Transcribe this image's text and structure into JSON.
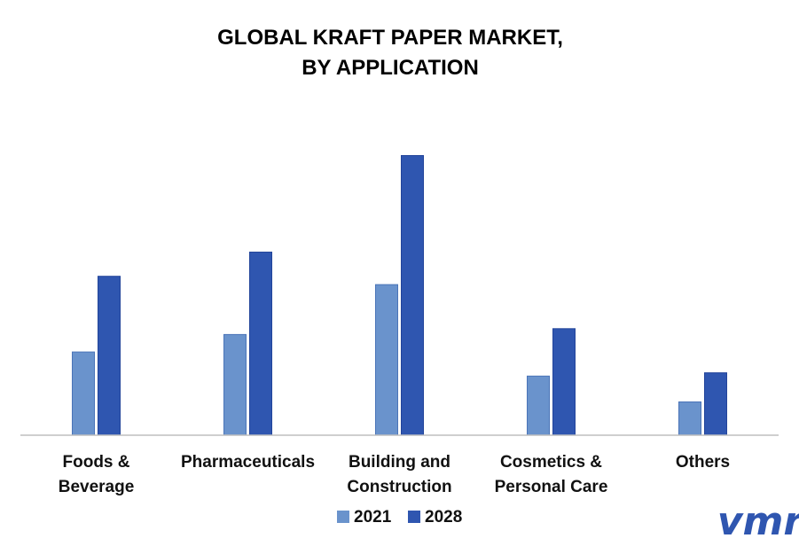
{
  "chart_data": {
    "type": "bar",
    "title": [
      "GLOBAL KRAFT PAPER MARKET,",
      "BY APPLICATION"
    ],
    "categories": [
      [
        "Foods &",
        "Beverage"
      ],
      [
        "Pharmaceuticals"
      ],
      [
        "Building and",
        "Construction"
      ],
      [
        "Cosmetics &",
        "Personal Care"
      ],
      [
        "Others"
      ]
    ],
    "series": [
      {
        "name": "2021",
        "color": "#6a93cc",
        "values": [
          100,
          121,
          181,
          71,
          40
        ]
      },
      {
        "name": "2028",
        "color": "#2f56b0",
        "values": [
          191,
          220,
          336,
          128,
          75
        ]
      }
    ],
    "ylim": [
      0,
      360
    ],
    "grid": false,
    "legend": "bottom-center"
  },
  "logo": {
    "text": "vmr",
    "color": "#2f56b0"
  }
}
